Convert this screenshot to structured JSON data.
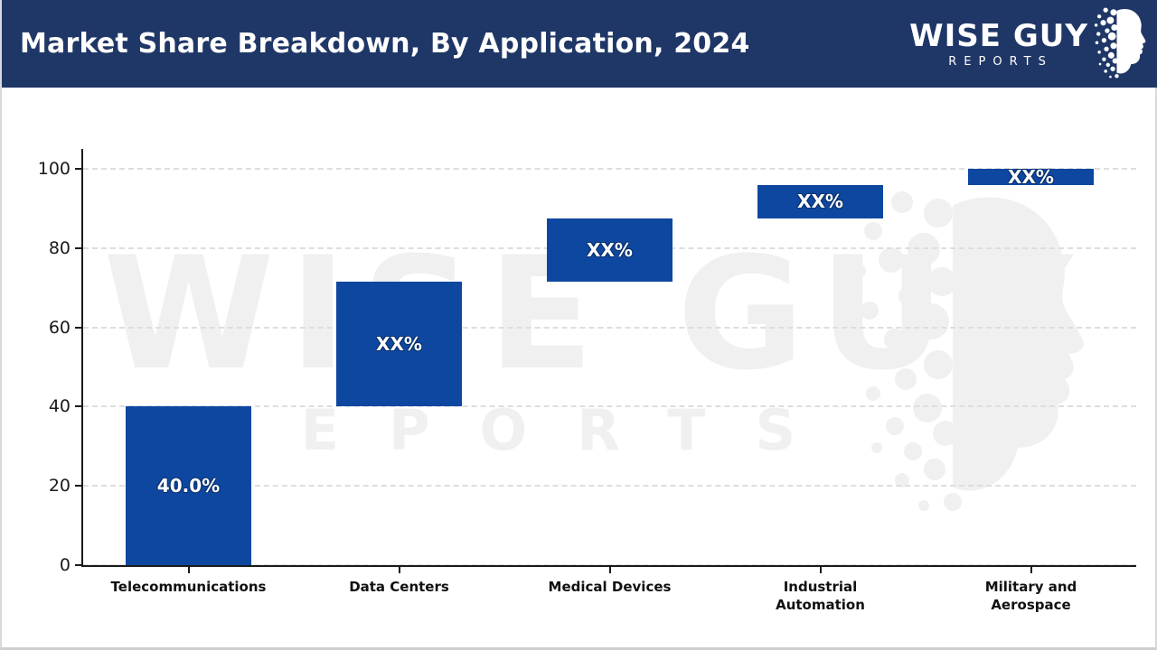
{
  "header": {
    "title": "Market Share Breakdown, By Application, 2024",
    "logo": {
      "line1": "WISE GUY",
      "line2": "REPORTS"
    }
  },
  "watermark": {
    "line1": "WISE GUY",
    "line2": "REPORTS"
  },
  "colors": {
    "header_bg": "#1f3766",
    "bar": "#0d47a0",
    "bar_label_text": "#ffffff",
    "grid": "#dedede",
    "axis": "#1a1a1a",
    "watermark": "#f0f0f0"
  },
  "chart_data": {
    "type": "bar",
    "subtype": "waterfall-cumulative",
    "title": "Market Share Breakdown, By Application, 2024",
    "categories": [
      "Telecommunications",
      "Data Centers",
      "Medical Devices",
      "Industrial\nAutomation",
      "Military and\nAerospace"
    ],
    "segments": [
      {
        "category": "Telecommunications",
        "start": 0,
        "end": 40,
        "label": "40.0%"
      },
      {
        "category": "Data Centers",
        "start": 40,
        "end": 71.5,
        "label": "XX%"
      },
      {
        "category": "Medical Devices",
        "start": 71.5,
        "end": 87.5,
        "label": "XX%"
      },
      {
        "category": "Industrial Automation",
        "start": 87.5,
        "end": 96,
        "label": "XX%"
      },
      {
        "category": "Military and Aerospace",
        "start": 96,
        "end": 100,
        "label": "XX%"
      }
    ],
    "ylim": [
      0,
      100
    ],
    "yticks": [
      0,
      20,
      40,
      60,
      80,
      100
    ],
    "xlabel": "",
    "ylabel": "",
    "grid": "horizontal-dashed",
    "legend": "none",
    "bar_color": "#0d47a0"
  }
}
